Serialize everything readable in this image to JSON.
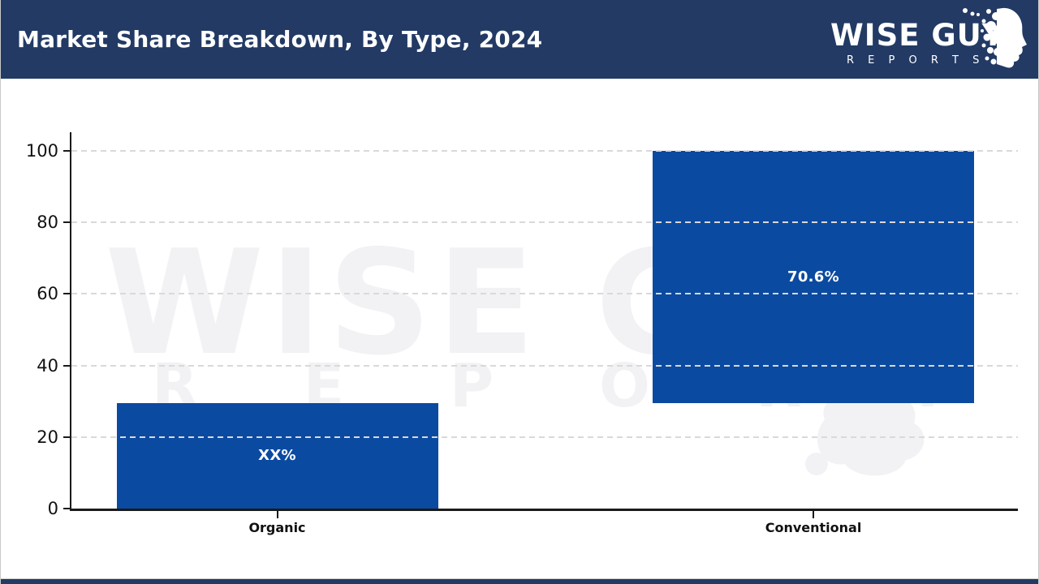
{
  "header": {
    "title": "Market Share Breakdown, By Type, 2024",
    "logo": {
      "primary": "WISE GUY",
      "secondary": "R E P O R T S"
    }
  },
  "watermark": {
    "primary": "WISE GU",
    "secondary": "R E P O R T"
  },
  "chart_data": {
    "type": "bar",
    "title": "Market Share Breakdown, By Type, 2024",
    "categories": [
      "Organic",
      "Conventional"
    ],
    "values": [
      29.4,
      70.6
    ],
    "stack_starts": [
      0,
      29.4
    ],
    "value_labels": [
      "XX%",
      "70.6%"
    ],
    "xlabel": "",
    "ylabel": "",
    "ylim": [
      0,
      100
    ],
    "yticks": [
      0,
      20,
      40,
      60,
      80,
      100
    ],
    "grid": {
      "horizontal": true,
      "style": "dashed",
      "above_bars": true
    },
    "legend": "none",
    "colors": {
      "bar": "#0b4aa1",
      "value_label": "#ffffff",
      "gridline": "#d9d9d9",
      "axis": "#1a1a1a",
      "tick_label": "#111111"
    }
  },
  "colors": {
    "header_bg": "#223a64",
    "footer_bg": "#223a64",
    "chart_bg": "#ffffff",
    "watermark": "#f2f2f5",
    "logo_text": "#ffffff"
  }
}
